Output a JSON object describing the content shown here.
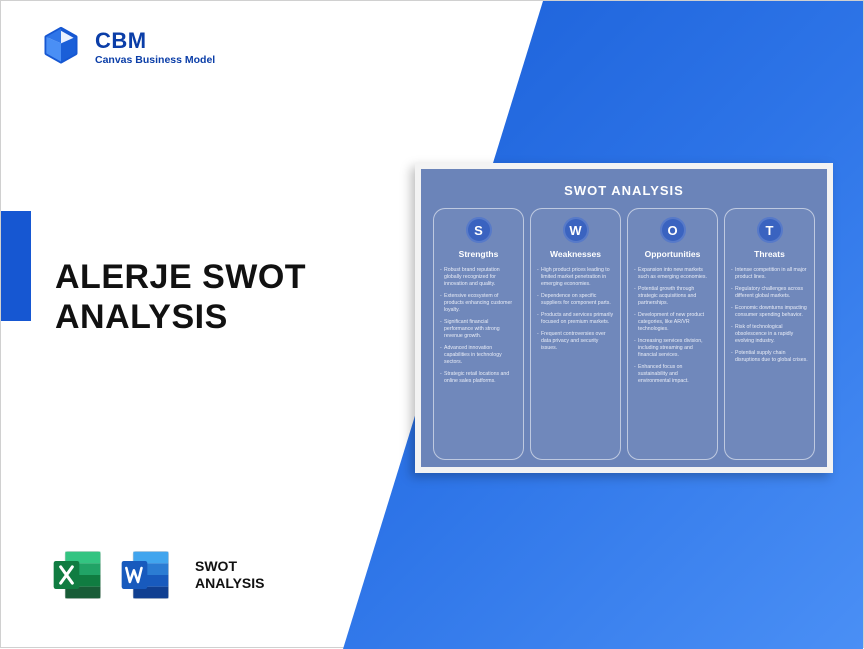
{
  "colors": {
    "brand_blue": "#0b3ea8",
    "diag_start": "#1a5fd8",
    "diag_mid": "#2e75e8",
    "diag_end": "#4a8ff5",
    "block_blue": "#1657d2",
    "panel_bg": "#6b84b9",
    "circle_bg": "#3a63c0",
    "excel_green_dark": "#107c41",
    "excel_green_light": "#21a366",
    "word_blue_dark": "#103f91",
    "word_blue_light": "#2b7cd3"
  },
  "logo": {
    "brand": "CBM",
    "tagline": "Canvas Business Model"
  },
  "title_line1": "ALERJE SWOT",
  "title_line2": "ANALYSIS",
  "apps_label_line1": "SWOT",
  "apps_label_line2": "ANALYSIS",
  "panel": {
    "title": "SWOT ANALYSIS",
    "columns": [
      {
        "letter": "S",
        "heading": "Strengths",
        "items": [
          "Robust brand reputation globally recognized for innovation and quality.",
          "Extensive ecosystem of products enhancing customer loyalty.",
          "Significant financial performance with strong revenue growth.",
          "Advanced innovation capabilities in technology sectors.",
          "Strategic retail locations and online sales platforms."
        ]
      },
      {
        "letter": "W",
        "heading": "Weaknesses",
        "items": [
          "High product prices leading to limited market penetration in emerging economies.",
          "Dependence on specific suppliers for component parts.",
          "Products and services primarily focused on premium markets.",
          "Frequent controversies over data privacy and security issues."
        ]
      },
      {
        "letter": "O",
        "heading": "Opportunities",
        "items": [
          "Expansion into new markets such as emerging economies.",
          "Potential growth through strategic acquisitions and partnerships.",
          "Development of new product categories, like AR/VR technologies.",
          "Increasing services division, including streaming and financial services.",
          "Enhanced focus on sustainability and environmental impact."
        ]
      },
      {
        "letter": "T",
        "heading": "Threats",
        "items": [
          "Intense competition in all major product lines.",
          "Regulatory challenges across different global markets.",
          "Economic downturns impacting consumer spending behavior.",
          "Risk of technological obsolescence in a rapidly evolving industry.",
          "Potential supply chain disruptions due to global crises."
        ]
      }
    ]
  }
}
